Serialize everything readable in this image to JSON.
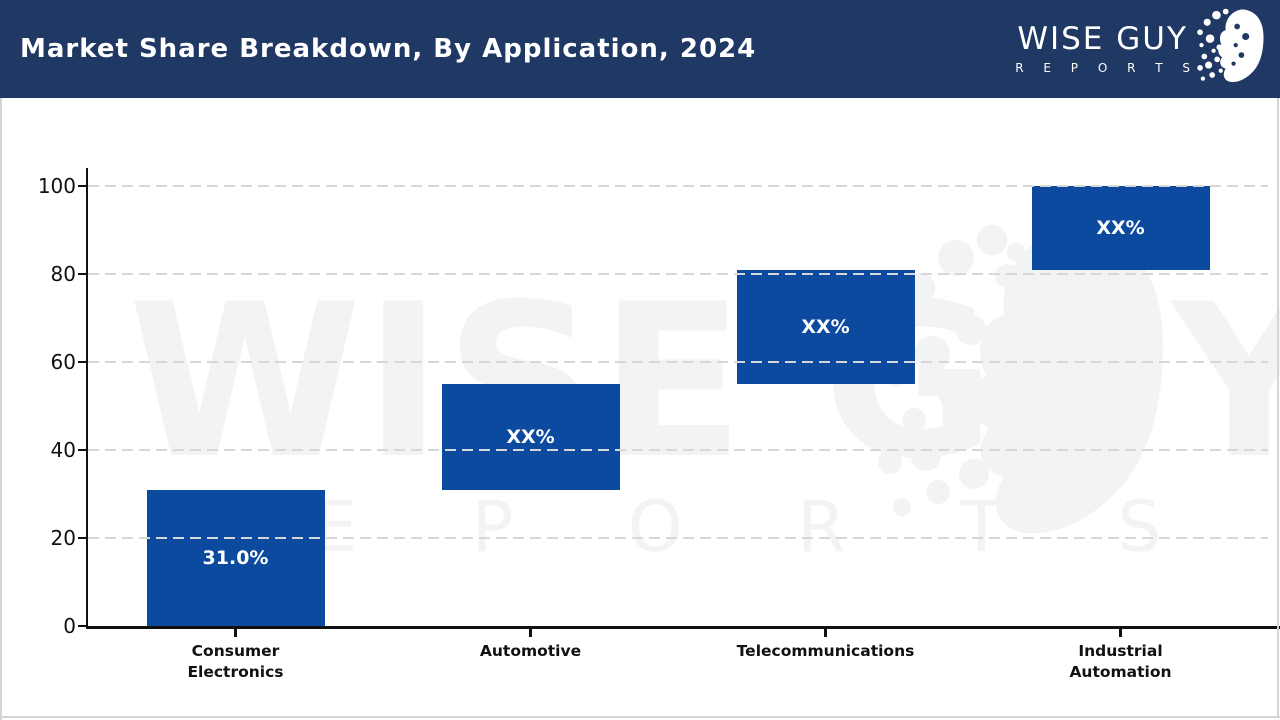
{
  "header": {
    "title": "Market Share Breakdown, By Application, 2024",
    "logo_line1": "WISE GUY",
    "logo_line2": "R E P O R T S"
  },
  "watermark": {
    "line1": "WISE GUY",
    "line2": "R E P O R T S"
  },
  "colors": {
    "header_bg": "#1f3864",
    "bar": "#0b4a9f",
    "grid": "#d7d7d7",
    "axis": "#111111",
    "value_label": "#ffffff",
    "watermark": "#f3f3f6",
    "page_border": "#d5d5d5"
  },
  "chart_data": {
    "type": "bar",
    "subtype": "floating-waterfall",
    "title": "Market Share Breakdown, By Application, 2024",
    "categories": [
      "Consumer\nElectronics",
      "Automotive",
      "Telecommunications",
      "Industrial\nAutomation"
    ],
    "segments": [
      {
        "category": "Consumer Electronics",
        "start": 0,
        "end": 31,
        "label": "31.0%"
      },
      {
        "category": "Automotive",
        "start": 31,
        "end": 55,
        "label": "XX%"
      },
      {
        "category": "Telecommunications",
        "start": 55,
        "end": 81,
        "label": "XX%"
      },
      {
        "category": "Industrial Automation",
        "start": 81,
        "end": 100,
        "label": "XX%"
      }
    ],
    "yticks": [
      0,
      20,
      40,
      60,
      80,
      100
    ],
    "ylim": [
      0,
      104
    ],
    "xlabel": "",
    "ylabel": "",
    "grid": "horizontal-dashed",
    "legend": "none"
  }
}
